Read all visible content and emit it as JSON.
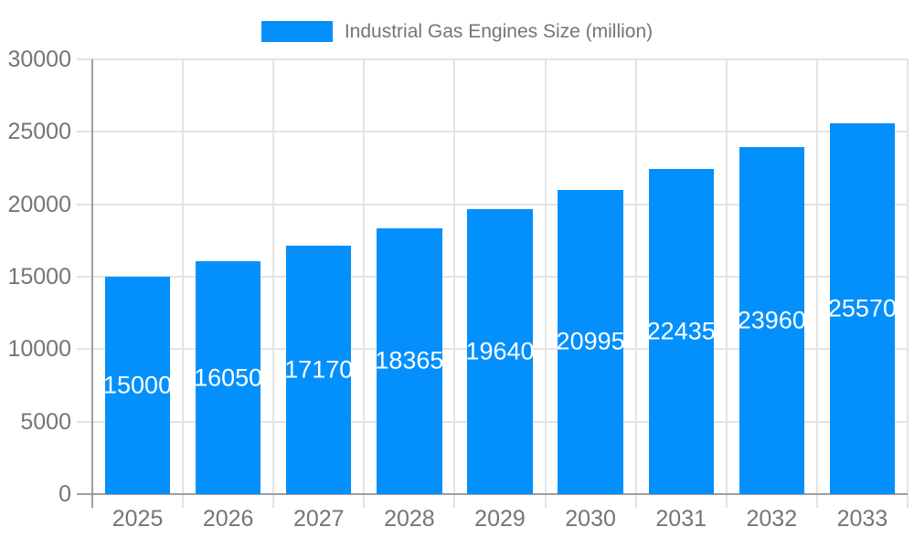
{
  "chart_data": {
    "type": "bar",
    "title": "",
    "legend_label": "Industrial Gas Engines Size (million)",
    "legend_position": "top",
    "categories": [
      "2025",
      "2026",
      "2027",
      "2028",
      "2029",
      "2030",
      "2031",
      "2032",
      "2033"
    ],
    "values": [
      15000,
      16050,
      17170,
      18365,
      19640,
      20995,
      22435,
      23960,
      25570
    ],
    "xlabel": "",
    "ylabel": "",
    "ylim": [
      0,
      30000
    ],
    "yticks": [
      0,
      5000,
      10000,
      15000,
      20000,
      25000,
      30000
    ],
    "grid": true,
    "bar_labels": "inside-centered",
    "colors": {
      "bar": "#0490fc",
      "bar_value_text": "#ffffff",
      "grid": "#e3e3e3",
      "axis": "#9e9e9e",
      "tick_text": "#757575",
      "legend_text": "#757575",
      "background": "#ffffff"
    }
  }
}
